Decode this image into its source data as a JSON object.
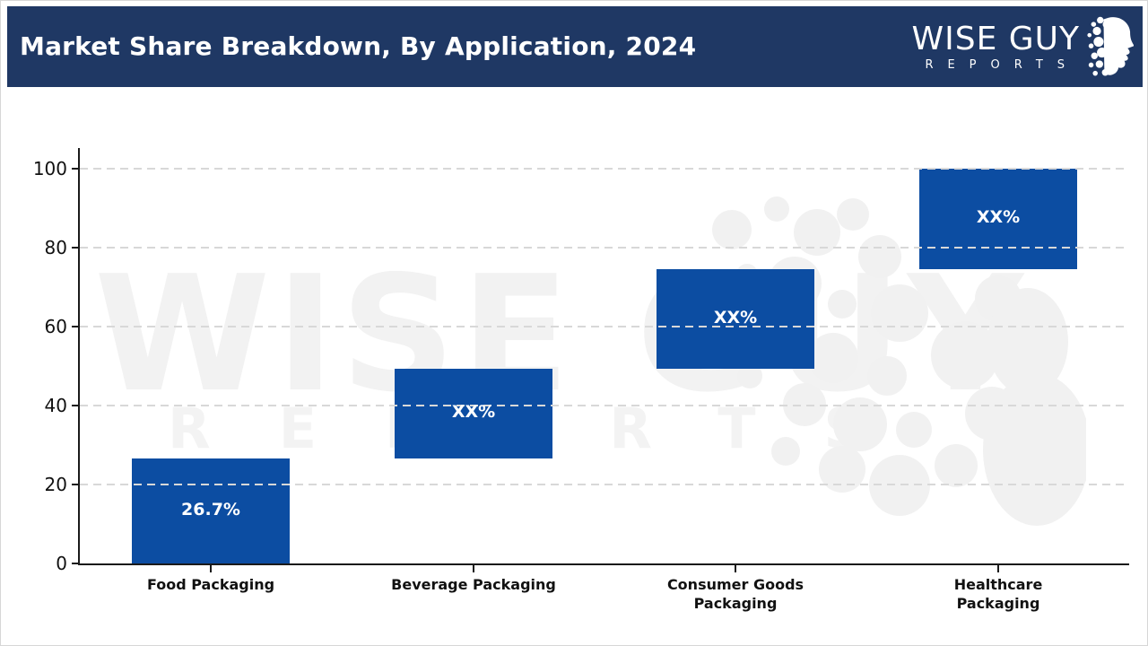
{
  "header": {
    "title": "Market Share Breakdown, By Application, 2024",
    "bg_color": "#1F3864",
    "logo": {
      "wordmark": "WISE GUY",
      "subtext": "REPORTS"
    }
  },
  "watermark": {
    "line1": "WISE GUY",
    "line2": "REPORTS"
  },
  "chart_data": {
    "type": "bar",
    "variant": "waterfall",
    "title": "Market Share Breakdown, By Application, 2024",
    "categories": [
      "Food Packaging",
      "Beverage Packaging",
      "Consumer Goods Packaging",
      "Healthcare Packaging"
    ],
    "category_lines": [
      [
        "Food Packaging"
      ],
      [
        "Beverage Packaging"
      ],
      [
        "Consumer Goods",
        "Packaging"
      ],
      [
        "Healthcare",
        "Packaging"
      ]
    ],
    "series": [
      {
        "name": "Market share (%)",
        "segments": [
          {
            "category": "Food Packaging",
            "start": 0,
            "end": 26.7,
            "label": "26.7%"
          },
          {
            "category": "Beverage Packaging",
            "start": 26.7,
            "end": 49.3,
            "label": "XX%"
          },
          {
            "category": "Consumer Goods Packaging",
            "start": 49.3,
            "end": 74.5,
            "label": "XX%"
          },
          {
            "category": "Healthcare Packaging",
            "start": 74.5,
            "end": 100,
            "label": "XX%"
          }
        ]
      }
    ],
    "xlabel": "",
    "ylabel": "",
    "ylim": [
      0,
      100
    ],
    "yticks": [
      0,
      20,
      40,
      60,
      80,
      100
    ],
    "grid": "horizontal-dashed",
    "legend": "none",
    "bar_color": "#0C4DA2",
    "bar_label_color": "#FFFFFF",
    "axis_color": "#1a1a1a",
    "grid_color": "#d8d8d8",
    "watermark_color": "#f2f2f2"
  }
}
